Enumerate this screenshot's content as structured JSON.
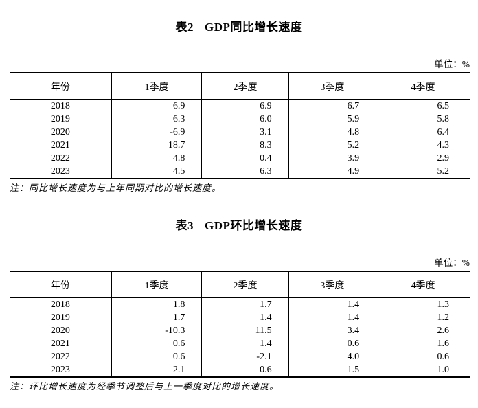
{
  "page": {
    "background": "#ffffff",
    "text_color": "#000000",
    "border_color": "#000000"
  },
  "tables": [
    {
      "table_no": "表2",
      "title": "GDP同比增长速度",
      "unit_label": "单位：%",
      "columns": [
        "年份",
        "1季度",
        "2季度",
        "3季度",
        "4季度"
      ],
      "rows": [
        {
          "year": "2018",
          "values": [
            "6.9",
            "6.9",
            "6.7",
            "6.5"
          ]
        },
        {
          "year": "2019",
          "values": [
            "6.3",
            "6.0",
            "5.9",
            "5.8"
          ]
        },
        {
          "year": "2020",
          "values": [
            "-6.9",
            "3.1",
            "4.8",
            "6.4"
          ]
        },
        {
          "year": "2021",
          "values": [
            "18.7",
            "8.3",
            "5.2",
            "4.3"
          ]
        },
        {
          "year": "2022",
          "values": [
            "4.8",
            "0.4",
            "3.9",
            "2.9"
          ]
        },
        {
          "year": "2023",
          "values": [
            "4.5",
            "6.3",
            "4.9",
            "5.2"
          ]
        }
      ],
      "note": "注：同比增长速度为与上年同期对比的增长速度。"
    },
    {
      "table_no": "表3",
      "title": "GDP环比增长速度",
      "unit_label": "单位：%",
      "columns": [
        "年份",
        "1季度",
        "2季度",
        "3季度",
        "4季度"
      ],
      "rows": [
        {
          "year": "2018",
          "values": [
            "1.8",
            "1.7",
            "1.4",
            "1.3"
          ]
        },
        {
          "year": "2019",
          "values": [
            "1.7",
            "1.4",
            "1.4",
            "1.2"
          ]
        },
        {
          "year": "2020",
          "values": [
            "-10.3",
            "11.5",
            "3.4",
            "2.6"
          ]
        },
        {
          "year": "2021",
          "values": [
            "0.6",
            "1.4",
            "0.6",
            "1.6"
          ]
        },
        {
          "year": "2022",
          "values": [
            "0.6",
            "-2.1",
            "4.0",
            "0.6"
          ]
        },
        {
          "year": "2023",
          "values": [
            "2.1",
            "0.6",
            "1.5",
            "1.0"
          ]
        }
      ],
      "note": "注：环比增长速度为经季节调整后与上一季度对比的增长速度。"
    }
  ]
}
